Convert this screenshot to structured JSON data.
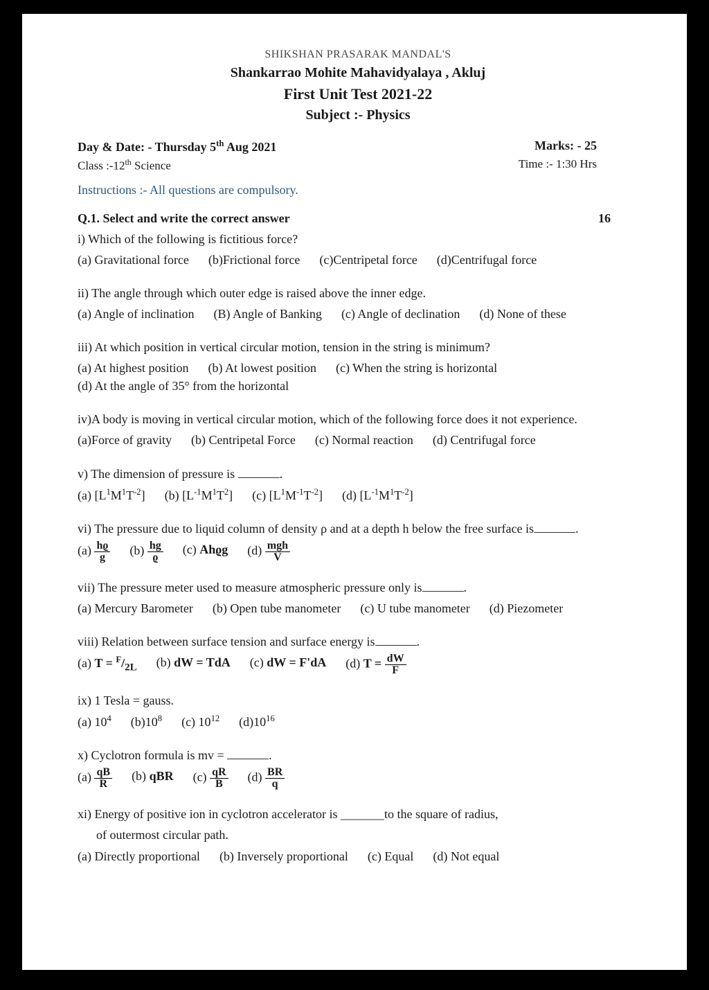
{
  "header": {
    "institute": "SHIKSHAN PRASARAK MANDAL'S",
    "college": "Shankarrao Mohite Mahavidyalaya , Akluj",
    "exam": "First Unit Test 2021-22",
    "subject": "Subject :- Physics"
  },
  "meta": {
    "date_label": "Day & Date: - Thursday 5",
    "date_sup": "th",
    "date_rest": " Aug 2021",
    "marks": "Marks: - 25",
    "class_prefix": "Class :-12",
    "class_sup": "th",
    "class_rest": " Science",
    "time": "Time :- 1:30 Hrs"
  },
  "instructions": "Instructions :- All questions are compulsory.",
  "q1": {
    "heading": "Q.1. Select and write the correct answer",
    "marks": "16",
    "items": [
      {
        "text": "i) Which of the following is fictitious force?",
        "opts": [
          "(a) Gravitational force",
          "(b)Frictional force",
          "(c)Centripetal force",
          "(d)Centrifugal force"
        ]
      },
      {
        "text": "ii) The angle through which outer edge is raised above the inner edge.",
        "opts": [
          "(a) Angle of inclination",
          "(B)  Angle of Banking",
          "(c) Angle of declination",
          "(d) None of these"
        ]
      },
      {
        "text": "iii) At which position in vertical circular motion, tension in the string is minimum?",
        "opts": [
          "(a) At highest position",
          "(b) At lowest position",
          "(c) When the string is horizontal",
          "(d) At the angle of 35° from the horizontal"
        ]
      },
      {
        "text": "iv)A body is moving in vertical circular motion, which of the following force does it not experience.",
        "opts": [
          "(a)Force of gravity",
          "(b) Centripetal Force",
          "(c) Normal reaction",
          "(d) Centrifugal force"
        ]
      },
      {
        "text": "v) The dimension of pressure is ",
        "blank": true,
        "opts_html": [
          "(a) [L<sup>1</sup>M<sup>1</sup>T<sup>-2</sup>]",
          "(b) [L<sup>-1</sup>M<sup>1</sup>T<sup>2</sup>]",
          "(c) [L<sup>1</sup>M<sup>-1</sup>T<sup>-2</sup>]",
          "(d) [L<sup>-1</sup>M<sup>1</sup>T<sup>-2</sup>]"
        ]
      },
      {
        "text": "vi) The pressure due to liquid column of density ρ  and at a depth h below the free surface is",
        "blank": true,
        "opts_html": [
          "(a)  <span class='frac hand'><span class='num'>hϱ</span><span class='den'>g</span></span>",
          "(b)    <span class='frac hand'><span class='num'>hg</span><span class='den'>ϱ</span></span>",
          "(c)    <span class='hand'>Ahϱg</span>",
          "(d)   <span class='frac hand'><span class='num'>mgh</span><span class='den'>V</span></span>"
        ]
      },
      {
        "text": "vii) The pressure meter used to measure atmospheric pressure only is",
        "blank": true,
        "opts": [
          "(a) Mercury Barometer",
          "(b) Open tube manometer",
          "(c) U tube manometer",
          "(d) Piezometer"
        ]
      },
      {
        "text": "viii) Relation between surface tension and surface energy is",
        "blank": true,
        "opts_html": [
          "(a)  <span class='hand'>T = <sup>F</sup>/<sub>2L</sub></span>",
          "(b) <span class='hand'>dW = TdA</span>",
          "(c)  <span class='hand'>dW = F'dA</span>",
          "(d)  <span class='hand'>T = </span><span class='frac hand'><span class='num'>dW</span><span class='den'>F</span></span>"
        ]
      },
      {
        "text": "ix) 1 Tesla =        gauss.",
        "opts_html": [
          "(a) 10<sup>4</sup>",
          "(b)10<sup>8</sup>",
          "(c) 10<sup>12</sup>",
          "(d)10<sup>16</sup>"
        ]
      },
      {
        "text": "x) Cyclotron formula is mv = ",
        "blank": true,
        "opts_html": [
          "(a)   <span class='frac hand'><span class='num'>qB</span><span class='den'>R</span></span>",
          "(b)     <span class='hand'>qBR</span>",
          "(c)    <span class='frac hand'><span class='num'>qR</span><span class='den'>B</span></span>",
          "(d)     <span class='frac hand'><span class='num'>BR</span><span class='den'>q</span></span>"
        ]
      },
      {
        "text": "xi) Energy of positive ion in cyclotron accelerator is _______to the square of radius,",
        "extra": "      of outermost circular path.",
        "opts": [
          "(a) Directly proportional",
          "(b) Inversely proportional",
          "(c) Equal",
          "(d) Not equal"
        ]
      }
    ]
  }
}
